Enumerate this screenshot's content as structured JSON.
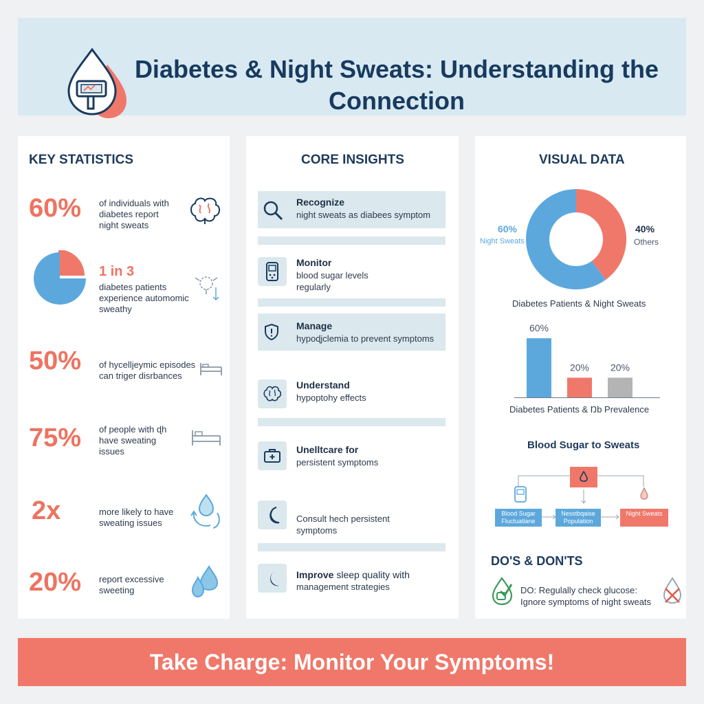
{
  "header": {
    "title": "Diabetes & Night Sweats: Understanding the Connection"
  },
  "key_statistics": {
    "title": "KEY STATISTICS",
    "items": [
      {
        "value": "60%",
        "text": [
          "of individuals with",
          "diabetes report",
          "night sweats"
        ],
        "icon": "brain-icon"
      },
      {
        "value": "1 in 3",
        "text": [
          "diabetes patients",
          "experience automomic",
          "sweathy"
        ],
        "icon": "nerve-icon"
      },
      {
        "value": "50%",
        "text": [
          "of hycelljeymic episodes",
          "can triger disrbances"
        ],
        "icon": "bed-icon"
      },
      {
        "value": "75%",
        "text": [
          "of people with ɖh",
          "have sweating",
          "issues"
        ],
        "icon": "bed-icon"
      },
      {
        "value": "2x",
        "text": [
          "more likely to have",
          "sweating issues"
        ],
        "icon": "water-cycle-icon"
      },
      {
        "value": "20%",
        "text": [
          "report excessive",
          "sweeting"
        ],
        "icon": "water-drops-icon"
      }
    ]
  },
  "core_insights": {
    "title": "CORE INSIGHTS",
    "items": [
      {
        "heading": "Recognize",
        "body": [
          "night sweats as diabees symptom"
        ],
        "icon": "search-icon"
      },
      {
        "heading": "Monitor",
        "body": [
          "blood sugar levels",
          "regularly"
        ],
        "icon": "glucose-meter-icon"
      },
      {
        "heading": "Manage",
        "body": [
          "hypoɖjclemia to prevent symptoms"
        ],
        "icon": "shield-icon"
      },
      {
        "heading": "Understand",
        "body": [
          "hypoptohy effects"
        ],
        "icon": "brain-icon"
      },
      {
        "heading": "Unelltcare for",
        "heading_suffix": "",
        "body": [
          "persistent symptoms"
        ],
        "icon": "medical-kit-icon"
      },
      {
        "heading": "",
        "body": [
          "Consult hech persistent",
          "symptoms"
        ],
        "icon": "moon-icon"
      },
      {
        "heading": "Improve",
        "heading_tail": " sleep quality with",
        "body": [
          "management strategies"
        ],
        "icon": "moon-icon"
      }
    ]
  },
  "visual_data": {
    "title": "VISUAL DATA",
    "donut": {
      "left_pct": "60%",
      "left_label": "Night Sweats",
      "right_pct": "40%",
      "right_label": "Others",
      "caption": "Diabetes Patients & Night Sweats"
    },
    "bars_caption": "Diabetes Patients & Ŋb Prevalence",
    "flow": {
      "title": "Blood Sugar to Sweats",
      "boxes": [
        "Blood Sugar Fluctuatiane",
        "Nesstbqaise Population",
        "Night Sweats"
      ]
    },
    "dos_donts": {
      "title": "DO'S & DON'TS",
      "lines": [
        "DO: Regulally check glucose:",
        "Ignore symptoms of night sweats"
      ]
    }
  },
  "chart_data": [
    {
      "type": "pie",
      "title": "",
      "categories": [
        "Night Sweats",
        "Others"
      ],
      "values": [
        60,
        40
      ],
      "colors": [
        "#5ca8dc",
        "#f0786a"
      ]
    },
    {
      "type": "bar",
      "title": "",
      "categories": [
        "",
        "",
        ""
      ],
      "values": [
        60,
        20,
        20
      ],
      "labels": [
        "60%",
        "20%",
        "20%"
      ],
      "colors": [
        "#5ca8dc",
        "#f0786a",
        "#b4b4b4"
      ],
      "ylim": [
        0,
        60
      ]
    }
  ],
  "footer": {
    "cta": "Take Charge: Monitor Your Symptoms!"
  },
  "colors": {
    "accent_red": "#f0786a",
    "accent_blue": "#5ca8dc",
    "navy": "#183a5e",
    "header_bg": "#d8e9f2"
  }
}
